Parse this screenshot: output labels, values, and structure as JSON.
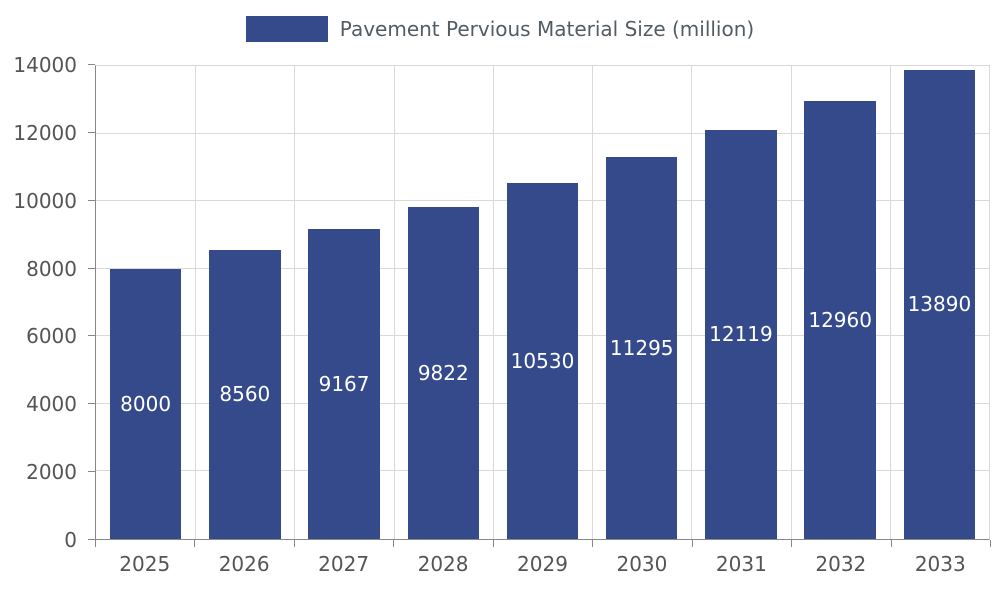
{
  "chart_data": {
    "type": "bar",
    "title": "Pavement Pervious Material Size (million)",
    "categories": [
      "2025",
      "2026",
      "2027",
      "2028",
      "2029",
      "2030",
      "2031",
      "2032",
      "2033"
    ],
    "values": [
      8000,
      8560,
      9167,
      9822,
      10530,
      11295,
      12119,
      12960,
      13890
    ],
    "xlabel": "",
    "ylabel": "",
    "ylim": [
      0,
      14000
    ],
    "yticks": [
      0,
      2000,
      4000,
      6000,
      8000,
      10000,
      12000,
      14000
    ],
    "bar_color": "#344a8b",
    "value_label_color": "#ffffff",
    "grid": true,
    "legend_position": "top"
  }
}
